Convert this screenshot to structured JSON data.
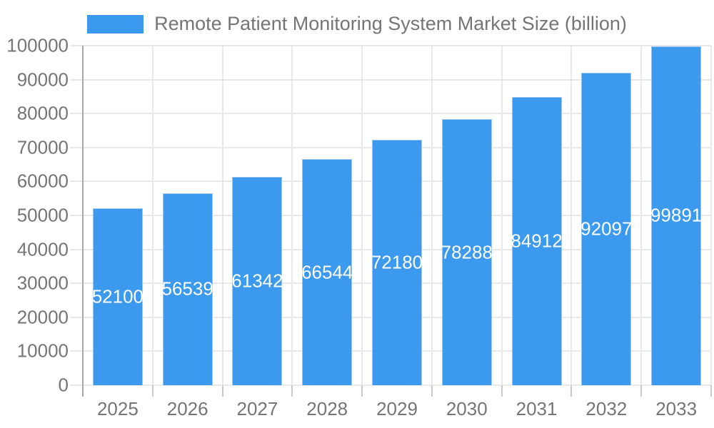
{
  "legend": {
    "label": "Remote Patient Monitoring System Market Size (billion)",
    "swatch_color": "#3B99EE"
  },
  "chart_data": {
    "type": "bar",
    "title": "Remote Patient Monitoring System Market Size (billion)",
    "series_name": "Remote Patient Monitoring System Market Size (billion)",
    "categories": [
      "2025",
      "2026",
      "2027",
      "2028",
      "2029",
      "2030",
      "2031",
      "2032",
      "2033"
    ],
    "values": [
      52100,
      56539,
      61342,
      66544,
      72180,
      78288,
      84912,
      92097,
      99891
    ],
    "xlabel": "",
    "ylabel": "",
    "ylim": [
      0,
      100000
    ],
    "ytick_step": 10000,
    "ytick_labels": [
      "0",
      "10000",
      "20000",
      "30000",
      "40000",
      "50000",
      "60000",
      "70000",
      "80000",
      "90000",
      "100000"
    ],
    "grid": true,
    "legend_position": "top",
    "bar_color": "#3B99EE",
    "bar_border_color": "#99c7f2",
    "value_label_color": "#ffffff",
    "axis_text_color": "#757575",
    "gridline_color": "#e8e8e8",
    "axis_line_color": "#a8a8a8",
    "background_color": "#ffffff"
  }
}
